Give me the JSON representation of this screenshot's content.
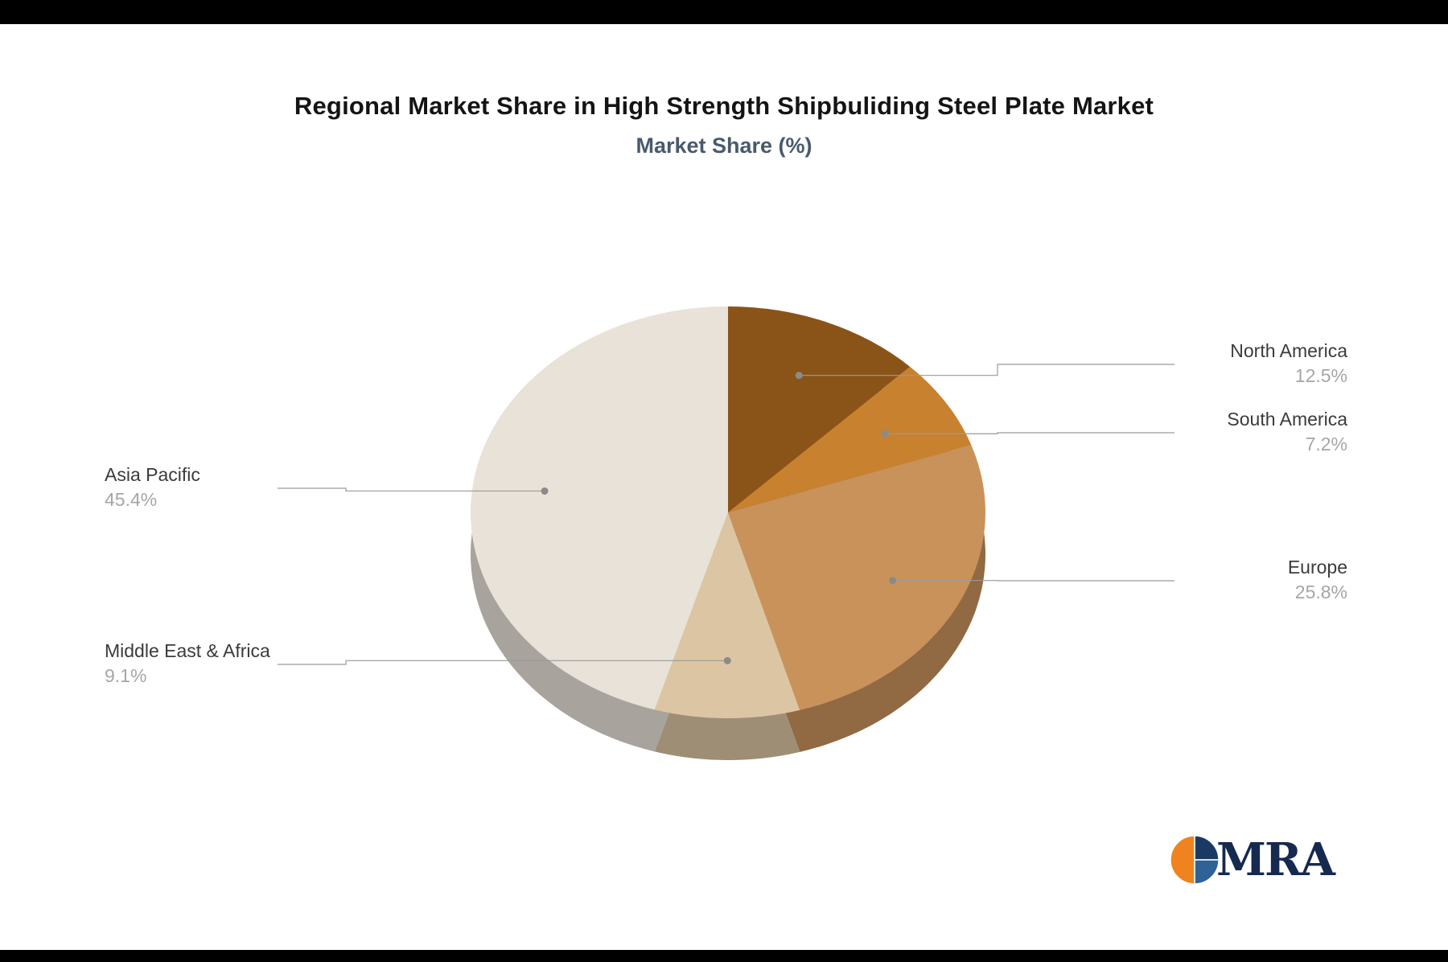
{
  "page": {
    "title": "Regional Market Share in High Strength Shipbuliding Steel Plate Market",
    "subtitle": "Market Share (%)"
  },
  "logo": {
    "text": "MRA",
    "colors": {
      "orange": "#ef8320",
      "navy": "#1b3a63",
      "steel": "#2f6296",
      "text": "#16294f"
    }
  },
  "chart_data": {
    "type": "pie",
    "title": "Regional Market Share in High Strength Shipbuliding Steel Plate Market",
    "subtitle": "Market Share (%)",
    "start_angle_deg": 0,
    "direction": "clockwise",
    "legend_position": "none",
    "label_style": "external-leader-lines",
    "effect": "3d-depth",
    "line_color": "#9a9a9a",
    "dot_color": "#8a8a8a",
    "slices": [
      {
        "label": "North America",
        "value": 12.5,
        "value_label": "12.5%",
        "color": "#8a5418"
      },
      {
        "label": "South America",
        "value": 7.2,
        "value_label": "7.2%",
        "color": "#c8812e"
      },
      {
        "label": "Europe",
        "value": 25.8,
        "value_label": "25.8%",
        "color": "#c9925b"
      },
      {
        "label": "Middle East & Africa",
        "value": 9.1,
        "value_label": "9.1%",
        "color": "#dcc5a2"
      },
      {
        "label": "Asia Pacific",
        "value": 45.4,
        "value_label": "45.4%",
        "color": "#e9e2d8"
      }
    ]
  }
}
